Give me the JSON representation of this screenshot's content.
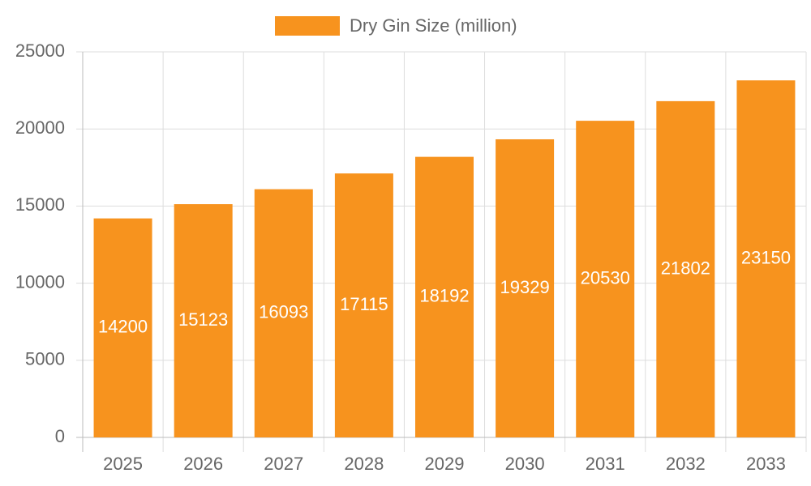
{
  "chart_data": {
    "type": "bar",
    "categories": [
      "2025",
      "2026",
      "2027",
      "2028",
      "2029",
      "2030",
      "2031",
      "2032",
      "2033"
    ],
    "series": [
      {
        "name": "Dry Gin Size (million)",
        "color": "#f7931e",
        "values": [
          14200,
          15123,
          16093,
          17115,
          18192,
          19329,
          20530,
          21802,
          23150
        ]
      }
    ],
    "ylim": [
      0,
      25000
    ],
    "yticks": [
      0,
      5000,
      10000,
      15000,
      20000,
      25000
    ],
    "grid": true,
    "legend": "top"
  }
}
